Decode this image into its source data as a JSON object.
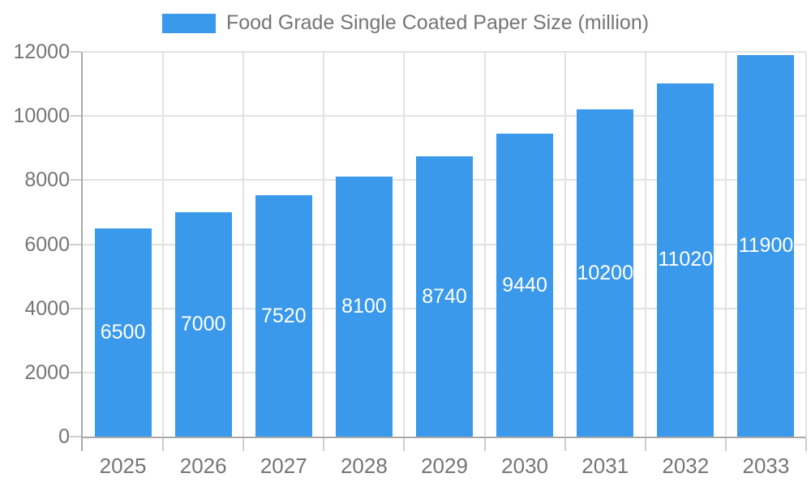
{
  "chart_data": {
    "type": "bar",
    "title": "",
    "legend": {
      "label": "Food Grade Single Coated Paper Size (million)",
      "position": "top"
    },
    "categories": [
      "2025",
      "2026",
      "2027",
      "2028",
      "2029",
      "2030",
      "2031",
      "2032",
      "2033"
    ],
    "values": [
      6500,
      7000,
      7520,
      8100,
      8740,
      9440,
      10200,
      11020,
      11900
    ],
    "xlabel": "",
    "ylabel": "",
    "ylim": [
      0,
      12000
    ],
    "ytick_step": 2000,
    "yticks": [
      0,
      2000,
      4000,
      6000,
      8000,
      10000,
      12000
    ],
    "grid": true,
    "value_labels": "inside-center",
    "colors": {
      "bar": "#3B99EC",
      "value_label": "#FFFFFF",
      "axis_text": "#757575",
      "grid_line": "#E2E2E2",
      "axis_line": "#A9A9A9",
      "tick_mark": "#CFCFCF",
      "background": "#FFFFFF"
    }
  }
}
